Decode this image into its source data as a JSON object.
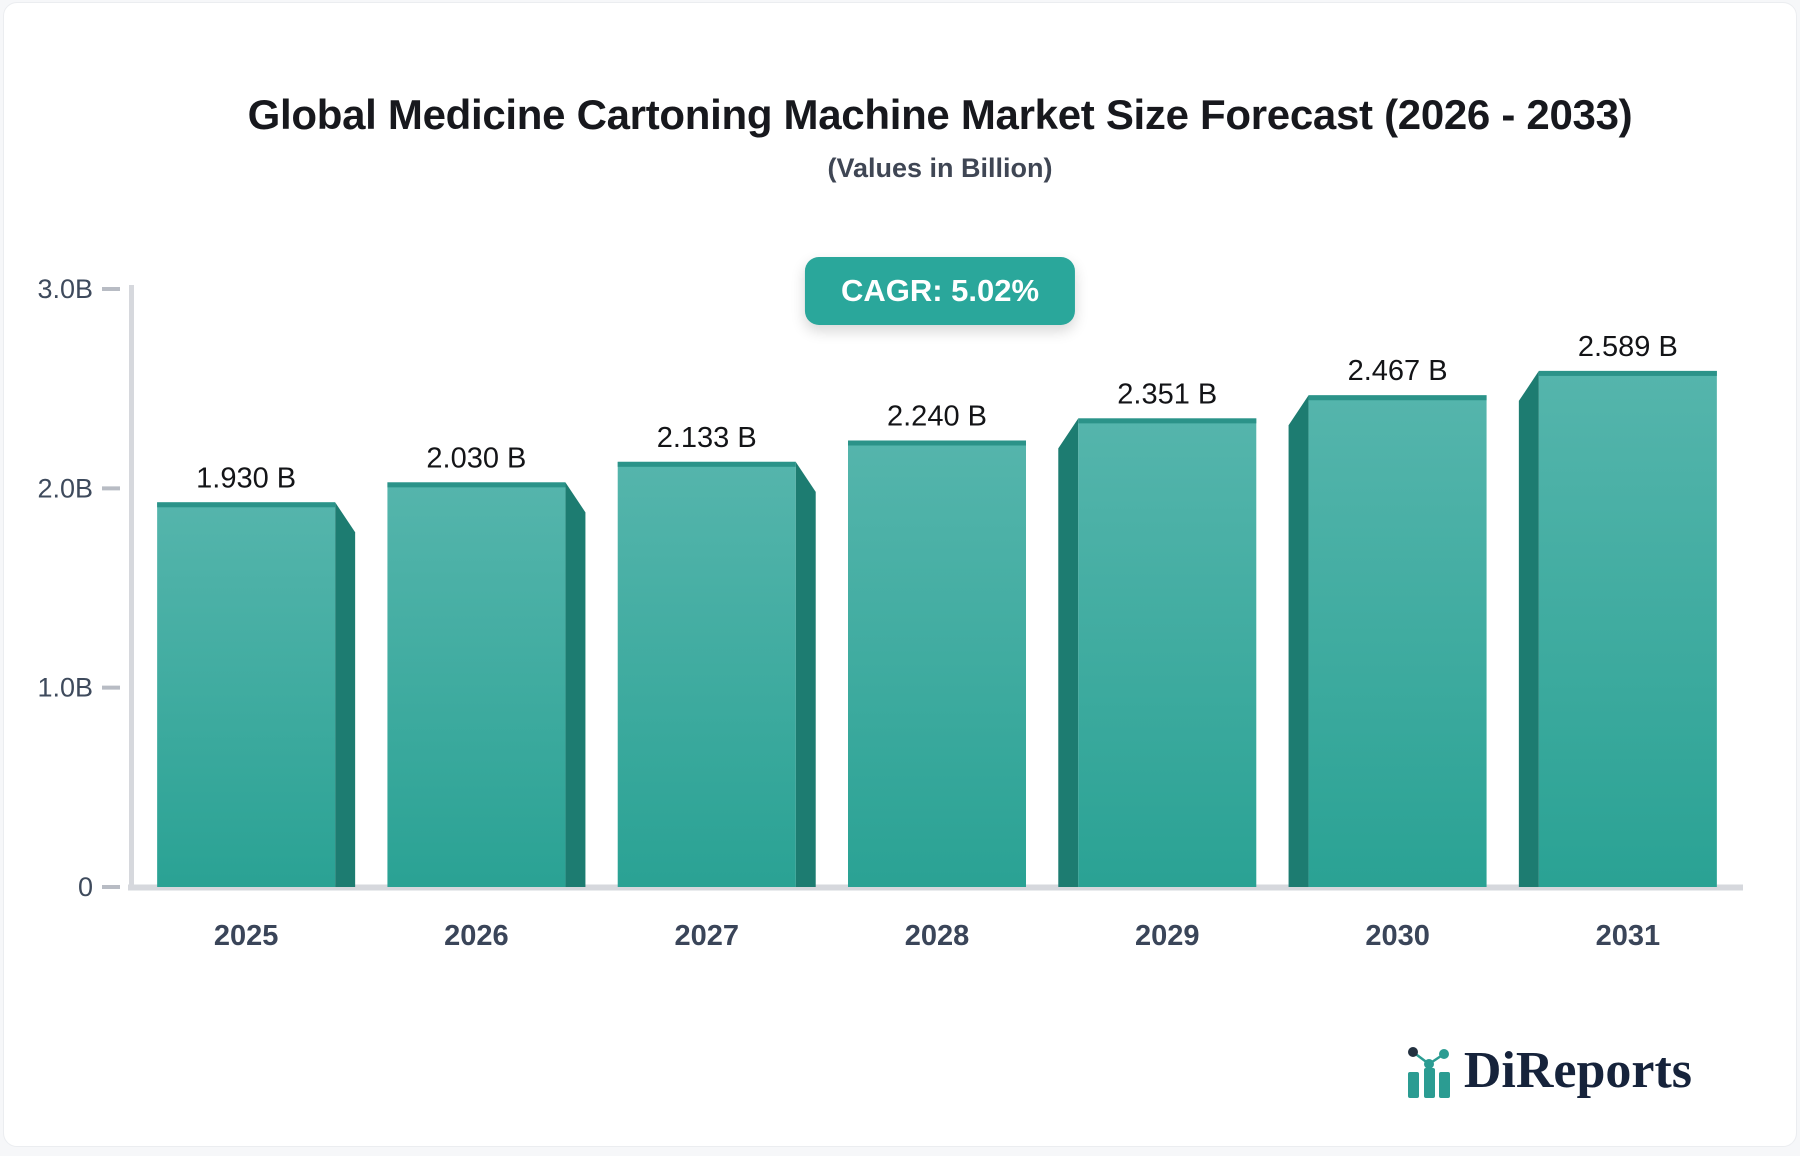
{
  "header": {
    "title": "Global Medicine Cartoning Machine Market Size Forecast (2026 - 2033)",
    "subtitle": "(Values in Billion)"
  },
  "badge": {
    "label": "CAGR: 5.02%",
    "bg": "#2aa79b"
  },
  "chart_data": {
    "type": "bar",
    "title": "Global Medicine Cartoning Machine Market Size Forecast (2026 - 2033)",
    "subtitle": "(Values in Billion)",
    "cagr": "5.02%",
    "categories": [
      "2025",
      "2026",
      "2027",
      "2028",
      "2029",
      "2030",
      "2031"
    ],
    "values": [
      1.93,
      2.03,
      2.133,
      2.24,
      2.351,
      2.467,
      2.589
    ],
    "value_labels": [
      "1.930 B",
      "2.030 B",
      "2.133 B",
      "2.240 B",
      "2.351 B",
      "2.467 B",
      "2.589 B"
    ],
    "xlabel": "",
    "ylabel": "",
    "ylim": [
      0,
      3
    ],
    "y_ticks": [
      {
        "value": 0,
        "label": "0"
      },
      {
        "value": 1,
        "label": "1.0B"
      },
      {
        "value": 2,
        "label": "2.0B"
      },
      {
        "value": 3,
        "label": "3.0B"
      }
    ],
    "grid": false,
    "legend": "none",
    "bar_color_top": "#55b5ac",
    "bar_color_bottom": "#2aa294",
    "bar_side_color": "#1d7c71",
    "bar_top_edge_color": "#2b9389",
    "axis_color": "#d6d8dd",
    "tick_color": "#b8bcc4",
    "tick_label_color": "#3e4a5c",
    "value_label_color": "#131417",
    "category_label_color": "#3a4559"
  },
  "logo": {
    "text": "DiReports",
    "icon": "mini-bar-chart-icon",
    "text_color": "#16233b",
    "accent_color": "#2b9c92"
  }
}
